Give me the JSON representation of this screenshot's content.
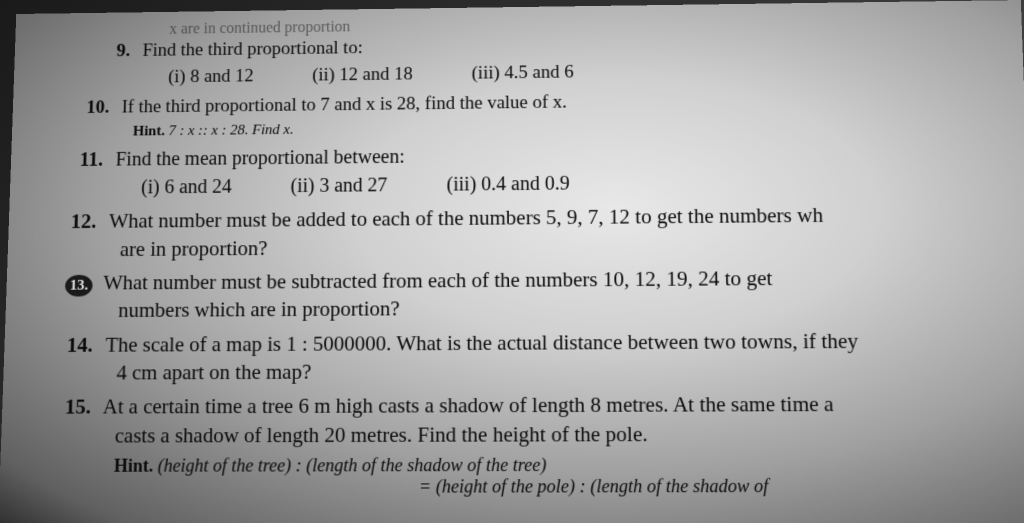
{
  "partial_top": "x are in continued proportion",
  "q9": {
    "num": "9.",
    "text": "Find the third proportional to:",
    "options": {
      "i": "(i) 8 and 12",
      "ii": "(ii) 12 and 18",
      "iii": "(iii) 4.5 and 6"
    }
  },
  "q10": {
    "num": "10.",
    "text": "If the third proportional to 7 and x is 28, find the value of x.",
    "hint_label": "Hint.",
    "hint_text": "7 : x :: x : 28. Find x."
  },
  "q11": {
    "num": "11.",
    "text": "Find the mean proportional between:",
    "options": {
      "i": "(i) 6 and 24",
      "ii": "(ii) 3 and 27",
      "iii": "(iii) 0.4 and 0.9"
    }
  },
  "q12": {
    "num": "12.",
    "text": "What number must be added to each of the numbers 5, 9, 7, 12 to get the numbers wh",
    "cont": "are in proportion?"
  },
  "q13": {
    "num": "13.",
    "text": "What number must be subtracted from each of the numbers 10, 12, 19, 24 to get",
    "cont": "numbers which are in proportion?"
  },
  "q14": {
    "num": "14.",
    "text": "The scale of a map is 1 : 5000000. What is the actual distance between two towns, if they",
    "cont": "4 cm apart on the map?"
  },
  "q15": {
    "num": "15.",
    "text": "At a certain time a tree 6 m high casts a shadow of length 8 metres. At the same time a",
    "cont": "casts a shadow of length 20 metres. Find the height of the pole."
  },
  "bottom_hint": {
    "label": "Hint.",
    "line1": "(height of the tree) : (length of the shadow of the tree)",
    "line2": "= (height of the pole) : (length of the shadow of"
  }
}
